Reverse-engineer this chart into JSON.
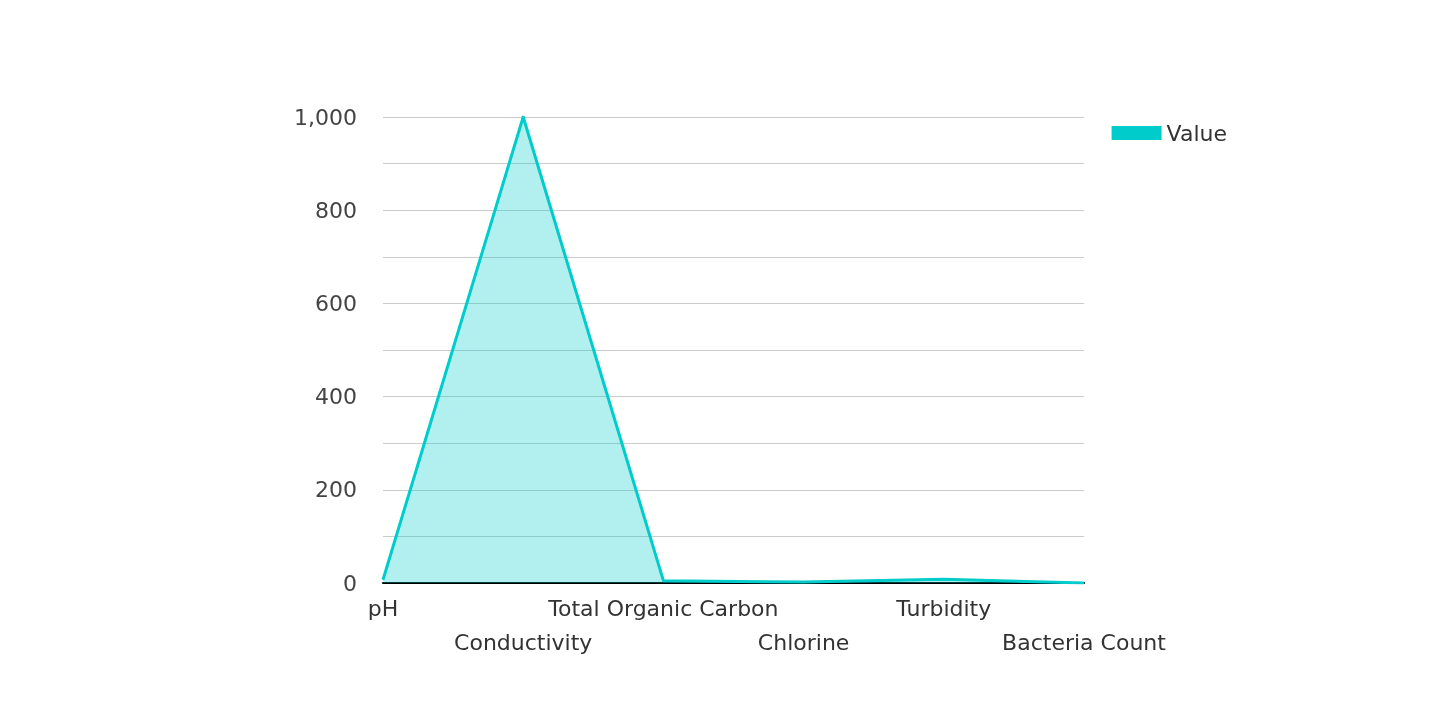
{
  "chart_data": {
    "type": "area",
    "categories": [
      "pH",
      "Conductivity",
      "Total Organic Carbon",
      "Chlorine",
      "Turbidity",
      "Bacteria Count"
    ],
    "series": [
      {
        "name": "Value",
        "color": "#00cccc",
        "values": [
          7,
          1000,
          5,
          2,
          8,
          0
        ]
      }
    ],
    "ylim": [
      0,
      1000
    ],
    "yticks": [
      0,
      {
        "value": 100,
        "label": null
      },
      200,
      {
        "value": 300,
        "label": null
      },
      400,
      {
        "value": 500,
        "label": null
      },
      600,
      {
        "value": 700,
        "label": null
      },
      800,
      {
        "value": 900,
        "label": null
      },
      {
        "value": 1000,
        "label": "1,000"
      }
    ],
    "grid": "y",
    "legend": "top right",
    "marker": "none",
    "line_style": "solid"
  }
}
